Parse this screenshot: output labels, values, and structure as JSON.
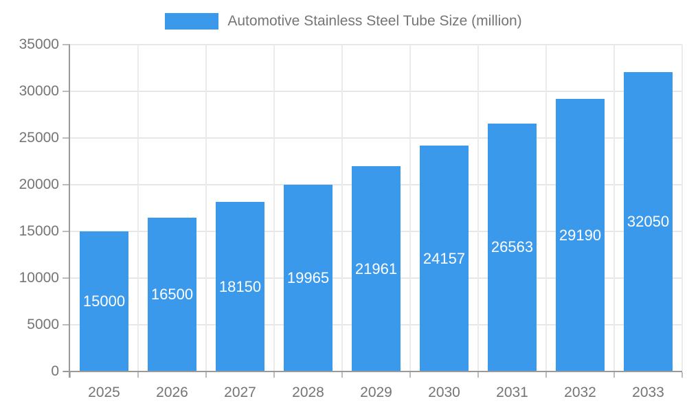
{
  "legend": {
    "label": "Automotive Stainless Steel Tube Size (million)"
  },
  "chart_data": {
    "type": "bar",
    "title": "Automotive Stainless Steel Tube Size (million)",
    "categories": [
      "2025",
      "2026",
      "2027",
      "2028",
      "2029",
      "2030",
      "2031",
      "2032",
      "2033"
    ],
    "values": [
      15000,
      16500,
      18150,
      19965,
      21961,
      24157,
      26563,
      29190,
      32050
    ],
    "bar_labels": [
      "15000",
      "16500",
      "18150",
      "19965",
      "21961",
      "24157",
      "26563",
      "29190",
      "32050"
    ],
    "xlabel": "",
    "ylabel": "",
    "ylim": [
      0,
      35000
    ],
    "yticks": [
      0,
      5000,
      10000,
      15000,
      20000,
      25000,
      30000,
      35000
    ],
    "grid": true,
    "legend_position": "top-center",
    "bar_color": "#3B99EC",
    "bar_label_color": "#FFFFFF",
    "axis_text_color": "#757575",
    "axis_line_color": "#999999",
    "grid_color": "#E7E7E7",
    "tick_color": "#BBBBBB",
    "background_color": "#FFFFFF"
  }
}
